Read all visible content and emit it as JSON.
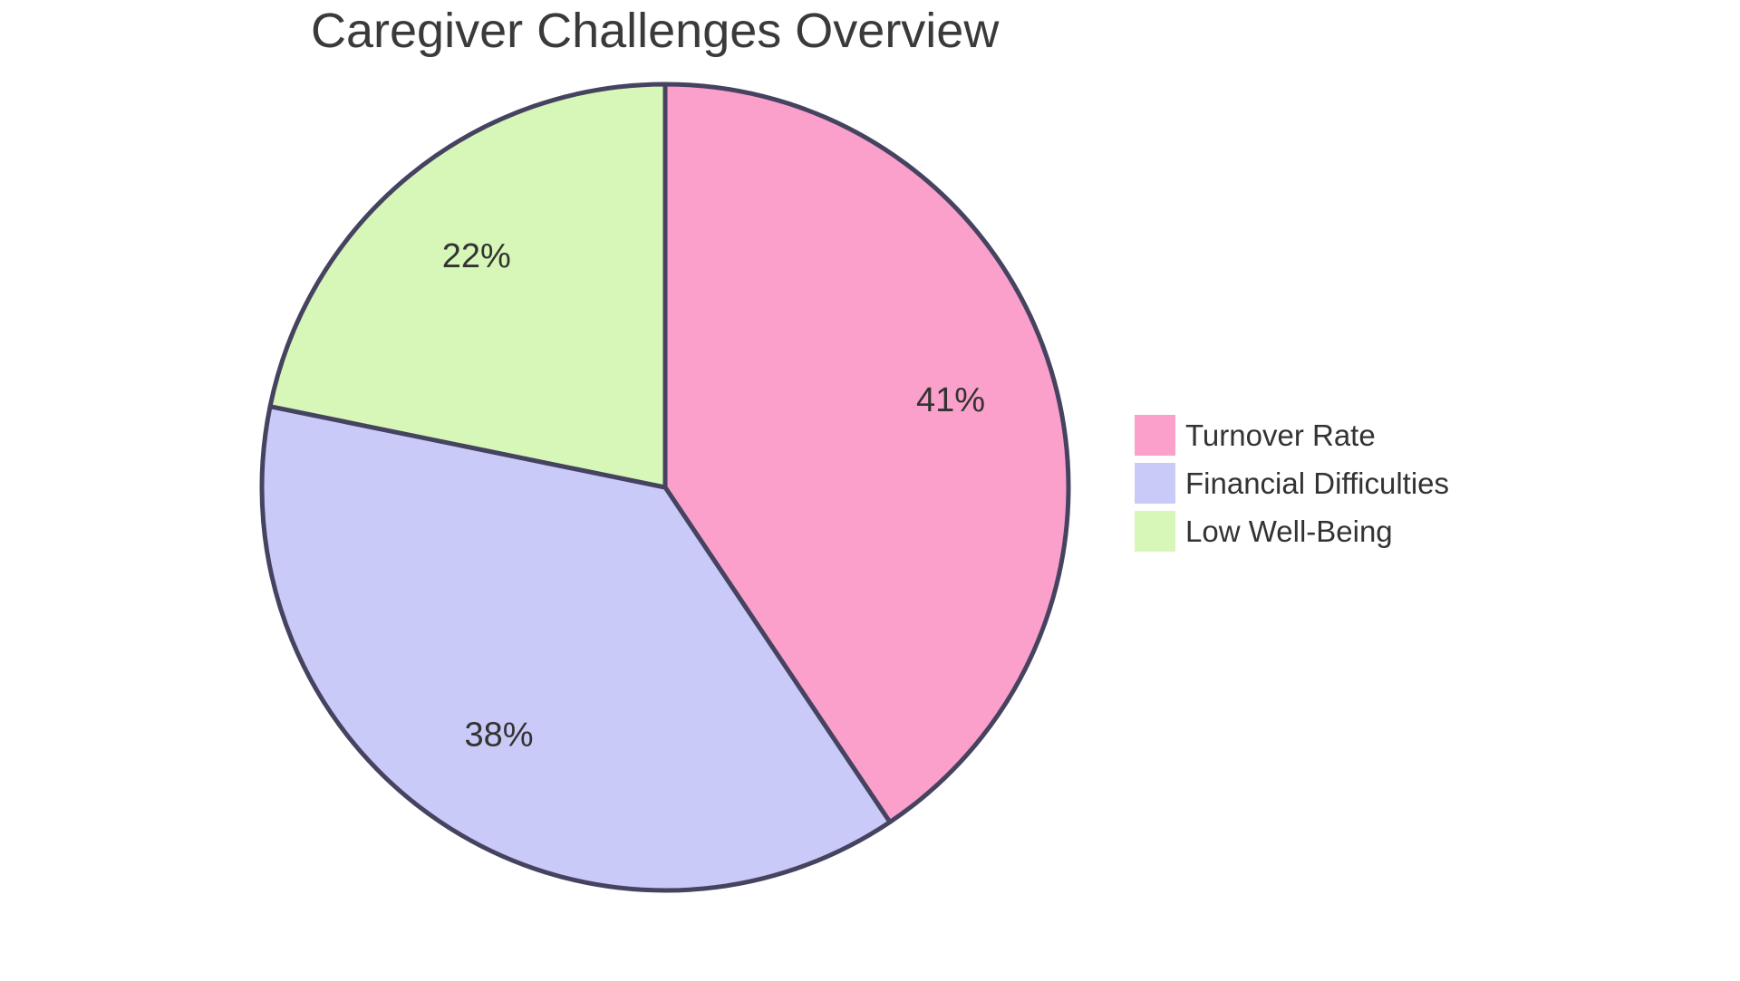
{
  "chart_data": {
    "type": "pie",
    "title": "Caregiver Challenges Overview",
    "categories": [
      "Turnover Rate",
      "Financial Difficulties",
      "Low Well-Being"
    ],
    "values": [
      41,
      38,
      22
    ],
    "value_labels": [
      "41%",
      "38%",
      "22%"
    ],
    "colors": [
      "#FAA0CA",
      "#C9CAF7",
      "#D7F7B8"
    ],
    "slice_border_color": "#454360",
    "title_color": "#3A3A3A",
    "label_color": "#333333",
    "legend_text_color": "#333333",
    "legend_position": "right",
    "start_angle": "top",
    "direction": "clockwise",
    "grid": "off"
  }
}
